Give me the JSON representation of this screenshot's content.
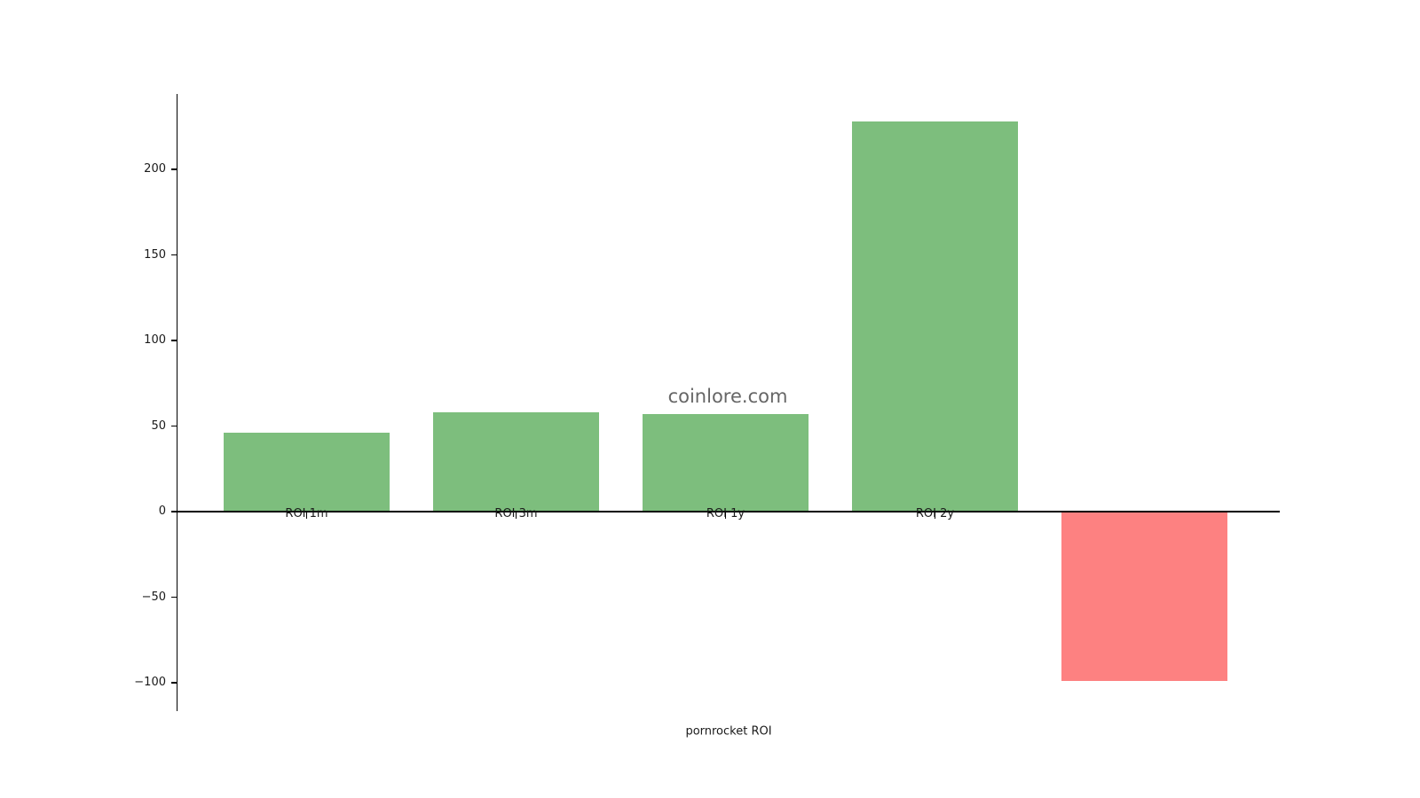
{
  "chart": {
    "watermark": "coinlore.com",
    "watermark_color": "#666666"
  },
  "chart_data": {
    "type": "bar",
    "title": "",
    "xlabel": "pornrocket ROI",
    "ylabel": "",
    "categories": [
      "ROI 1m",
      "ROI 3m",
      "ROI 1y",
      "ROI 2y",
      ""
    ],
    "values": [
      46,
      58,
      57,
      228,
      -99
    ],
    "bar_colors": [
      "#7dbe7d",
      "#7dbe7d",
      "#7dbe7d",
      "#7dbe7d",
      "#fd8181"
    ],
    "positive_color": "#7dbe7d",
    "negative_color": "#fd8181",
    "y_ticks": [
      200,
      150,
      100,
      50,
      0,
      -50,
      -100
    ],
    "y_tick_labels": [
      "200",
      "150",
      "100",
      "50",
      "0",
      "−50",
      "−100"
    ],
    "ylim": [
      -116.5,
      244.5
    ],
    "grid": false,
    "legend": null,
    "axis_color": "#000000",
    "background_color": "#ffffff"
  }
}
